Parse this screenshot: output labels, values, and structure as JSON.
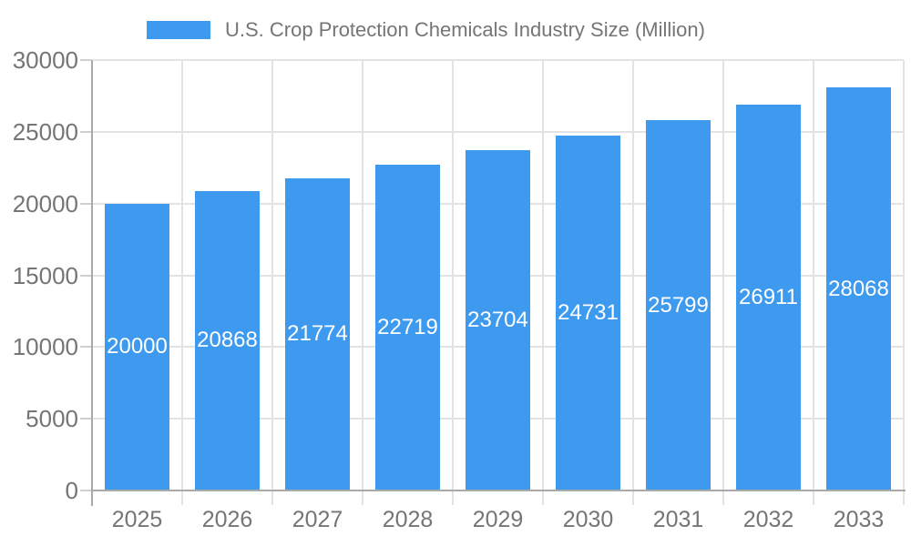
{
  "legend": {
    "label": "U.S. Crop Protection Chemicals Industry Size (Million)"
  },
  "colors": {
    "bar": "#3D9AEF",
    "axis_line": "#A9A9A9",
    "gridline": "#E3E3E3",
    "tick": "#CFCFCF",
    "axis_text": "#757575",
    "value_label_text": "#FFFFFF"
  },
  "chart_data": {
    "type": "bar",
    "title": "U.S. Crop Protection Chemicals Industry Size (Million)",
    "categories": [
      "2025",
      "2026",
      "2027",
      "2028",
      "2029",
      "2030",
      "2031",
      "2032",
      "2033"
    ],
    "values": [
      20000,
      20868,
      21774,
      22719,
      23704,
      24731,
      25799,
      26911,
      28068
    ],
    "value_labels": [
      "20000",
      "20868",
      "21774",
      "22719",
      "23704",
      "24731",
      "25799",
      "26911",
      "28068"
    ],
    "xlabel": "",
    "ylabel": "",
    "ylim": [
      0,
      30000
    ],
    "yticks": [
      0,
      5000,
      10000,
      15000,
      20000,
      25000,
      30000
    ],
    "ytick_labels": [
      "0",
      "5000",
      "10000",
      "15000",
      "20000",
      "25000",
      "30000"
    ],
    "grid": true,
    "legend_position": "top",
    "value_label_position": "inside-center"
  }
}
